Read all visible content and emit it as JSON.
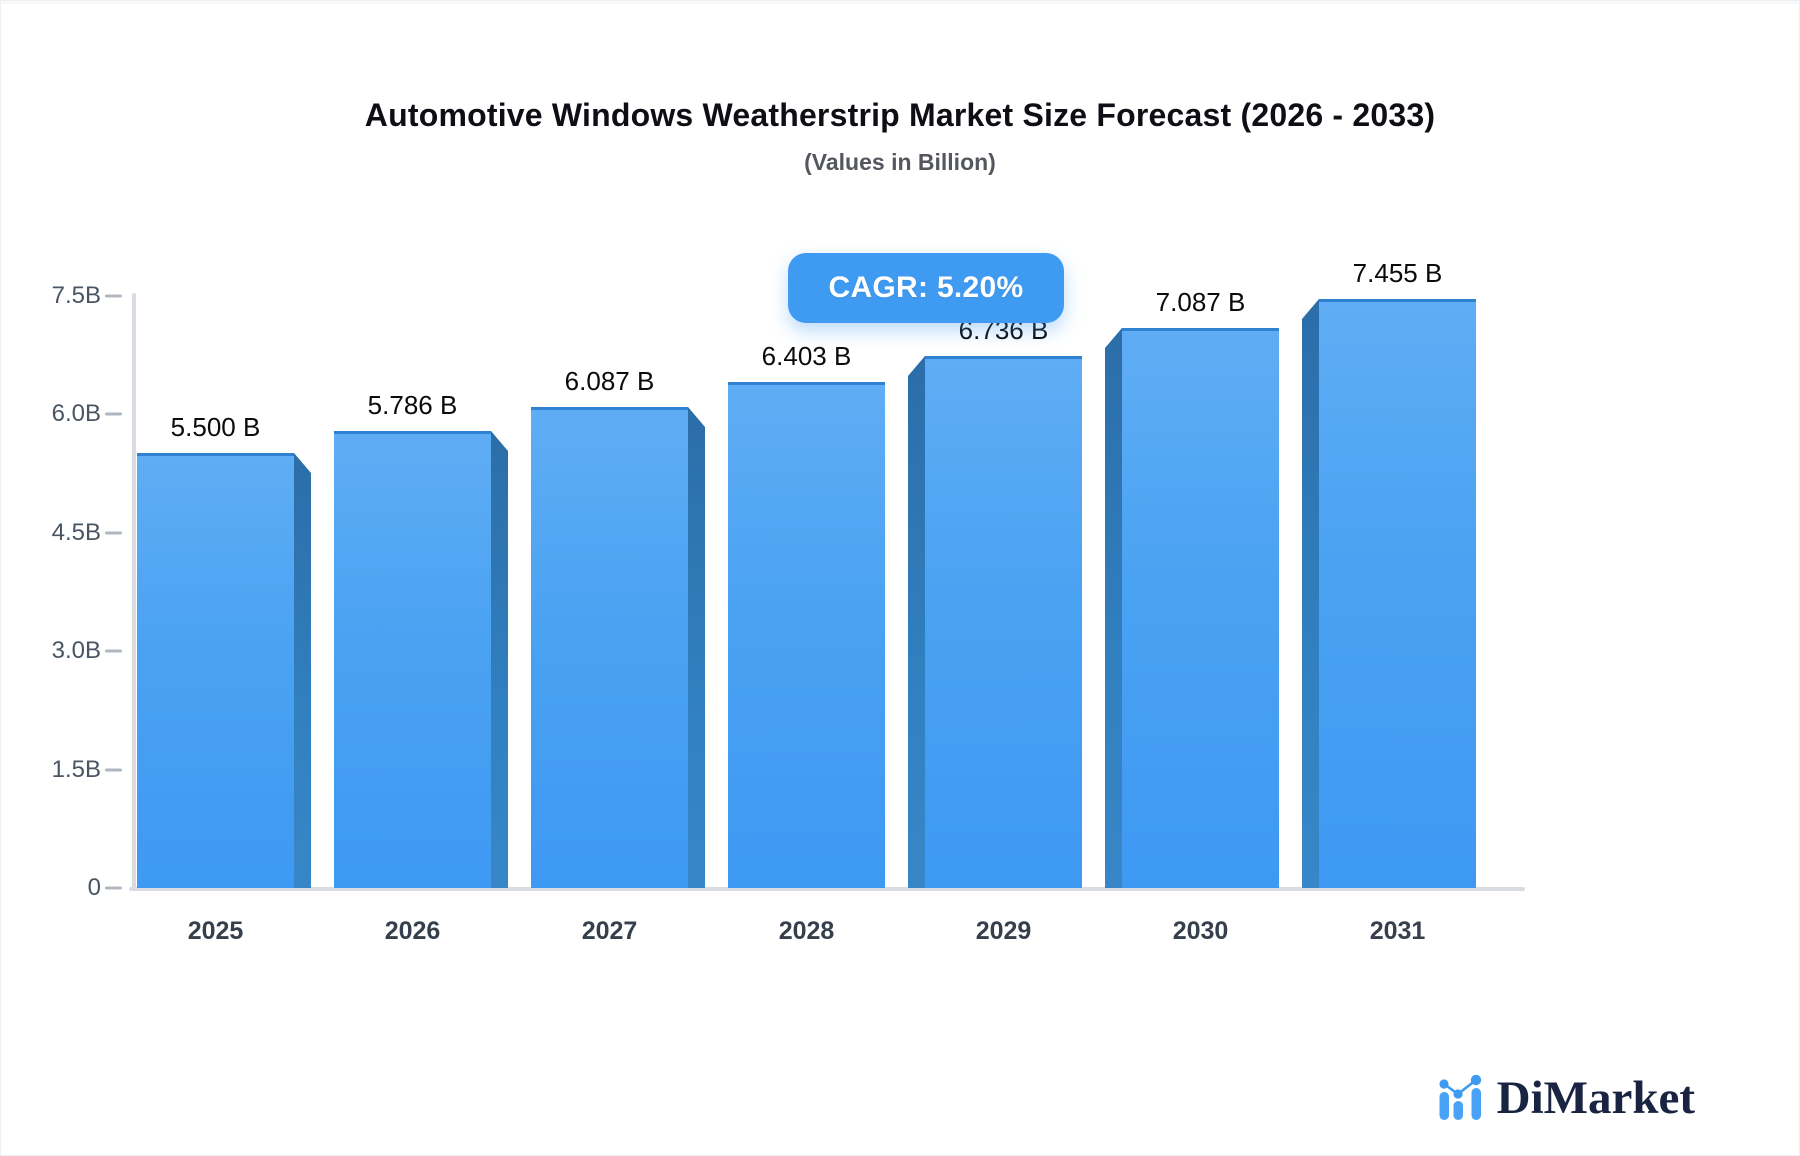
{
  "header": {
    "title": "Automotive Windows Weatherstrip Market Size Forecast (2026 - 2033)",
    "subtitle": "(Values in Billion)"
  },
  "badge": {
    "label": "CAGR: 5.20%"
  },
  "chart_data": {
    "type": "bar",
    "title": "Automotive Windows Weatherstrip Market Size Forecast (2026 - 2033)",
    "subtitle": "(Values in Billion)",
    "categories": [
      "2025",
      "2026",
      "2027",
      "2028",
      "2029",
      "2030",
      "2031"
    ],
    "values": [
      5.5,
      5.786,
      6.087,
      6.403,
      6.736,
      7.087,
      7.455
    ],
    "value_labels": [
      "5.500 B",
      "5.786 B",
      "6.087 B",
      "6.403 B",
      "6.736 B",
      "7.087 B",
      "7.455 B"
    ],
    "xlabel": "",
    "ylabel": "",
    "ylim": [
      0,
      7.5
    ],
    "yticks": [
      {
        "label": "7.5B",
        "value": 7.5
      },
      {
        "label": "6.0B",
        "value": 6.0
      },
      {
        "label": "4.5B",
        "value": 4.5
      },
      {
        "label": "3.0B",
        "value": 3.0
      },
      {
        "label": "1.5B",
        "value": 1.5
      },
      {
        "label": "0",
        "value": 0.0
      }
    ],
    "grid": false,
    "legend_position": "none",
    "annotation": "CAGR: 5.20%"
  },
  "colors": {
    "accent_blue": "#3f9bf2",
    "bar_top": "#5fadf4",
    "bar_bottom": "#3e99f3",
    "bar_side": "#2e74b0",
    "axis_line": "#d8dce2",
    "tick_text": "#4a5563",
    "year_text": "#363f4c",
    "title_text": "#0d0f14",
    "brand_navy": "#182441"
  },
  "footer": {
    "brand": "DiMarket"
  }
}
